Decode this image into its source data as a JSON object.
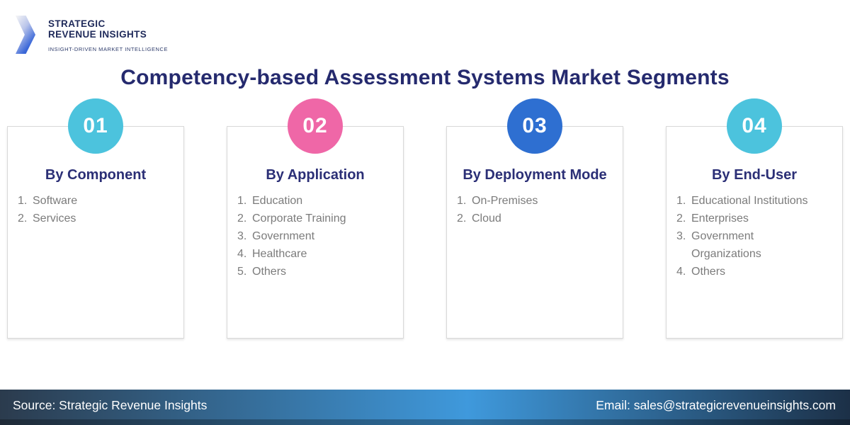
{
  "logo": {
    "name": "STRATEGIC\nREVENUE INSIGHTS",
    "tagline": "INSIGHT-DRIVEN MARKET INTELLIGENCE"
  },
  "title": "Competency-based Assessment Systems Market Segments",
  "cards": [
    {
      "number": "01",
      "badge_color": "#4cc3dd",
      "title": "By Component",
      "items": [
        "Software",
        "Services"
      ]
    },
    {
      "number": "02",
      "badge_color": "#ef67a7",
      "title": "By Application",
      "items": [
        "Education",
        "Corporate Training",
        "Government",
        "Healthcare",
        "Others"
      ]
    },
    {
      "number": "03",
      "badge_color": "#2e6fd1",
      "title": "By Deployment Mode",
      "items": [
        "On-Premises",
        "Cloud"
      ]
    },
    {
      "number": "04",
      "badge_color": "#4cc3dd",
      "title": "By End-User",
      "items": [
        "Educational Institutions",
        "Enterprises",
        "Government\nOrganizations",
        "Others"
      ]
    }
  ],
  "footer": {
    "source": "Source: Strategic Revenue Insights",
    "email": "Email: sales@strategicrevenueinsights.com"
  },
  "colors": {
    "title_text": "#252a6e",
    "card_heading": "#2b2f76",
    "list_text": "#7b7b7b",
    "badge_cyan": "#4cc3dd",
    "badge_pink": "#ef67a7",
    "badge_blue": "#2e6fd1",
    "footer_left": "#2b3b4d",
    "footer_mid": "#3f99dc",
    "footer_right": "#1c3047"
  }
}
